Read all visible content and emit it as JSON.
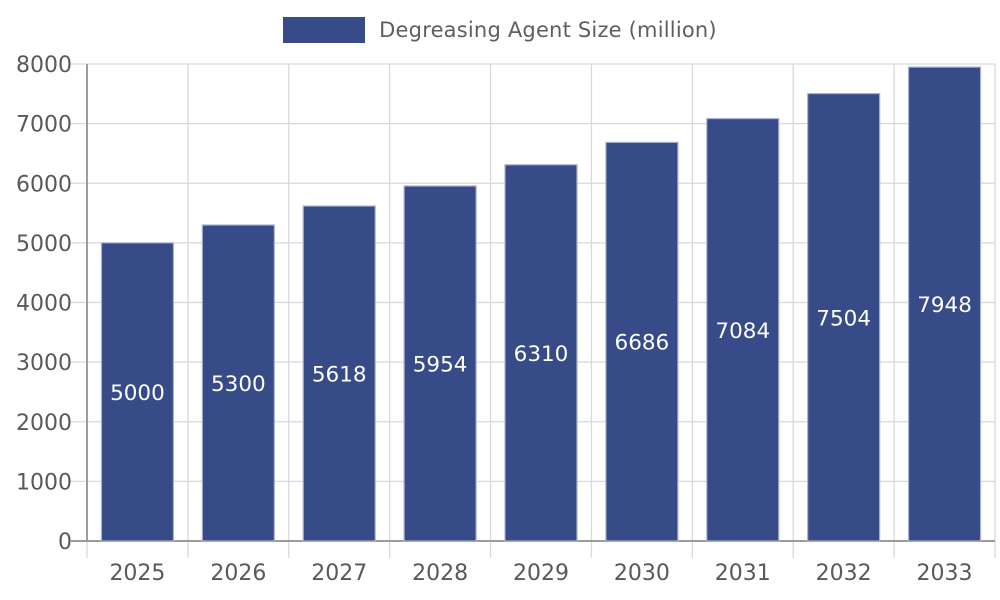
{
  "chart_data": {
    "type": "bar",
    "title": "Degreasing Agent Size (million)",
    "legend_label": "Degreasing Agent Size (million)",
    "legend_position": "top-center",
    "categories": [
      "2025",
      "2026",
      "2027",
      "2028",
      "2029",
      "2030",
      "2031",
      "2032",
      "2033"
    ],
    "values": [
      5000,
      5300,
      5618,
      5954,
      6310,
      6686,
      7084,
      7504,
      7948
    ],
    "xlabel": "",
    "ylabel": "",
    "ylim": [
      0,
      8000
    ],
    "yticks": [
      0,
      1000,
      2000,
      3000,
      4000,
      5000,
      6000,
      7000,
      8000
    ],
    "grid": true,
    "bar_labels_visible": true,
    "colors": {
      "bar": "#364B87",
      "bar_edge": "#a9b2ce",
      "bar_label": "#ffffff",
      "grid": "#d9d9dc",
      "axis": "#9c9c9f",
      "tick_text": "#58595b",
      "legend_text": "#5d5e61",
      "background": "#ffffff"
    }
  }
}
